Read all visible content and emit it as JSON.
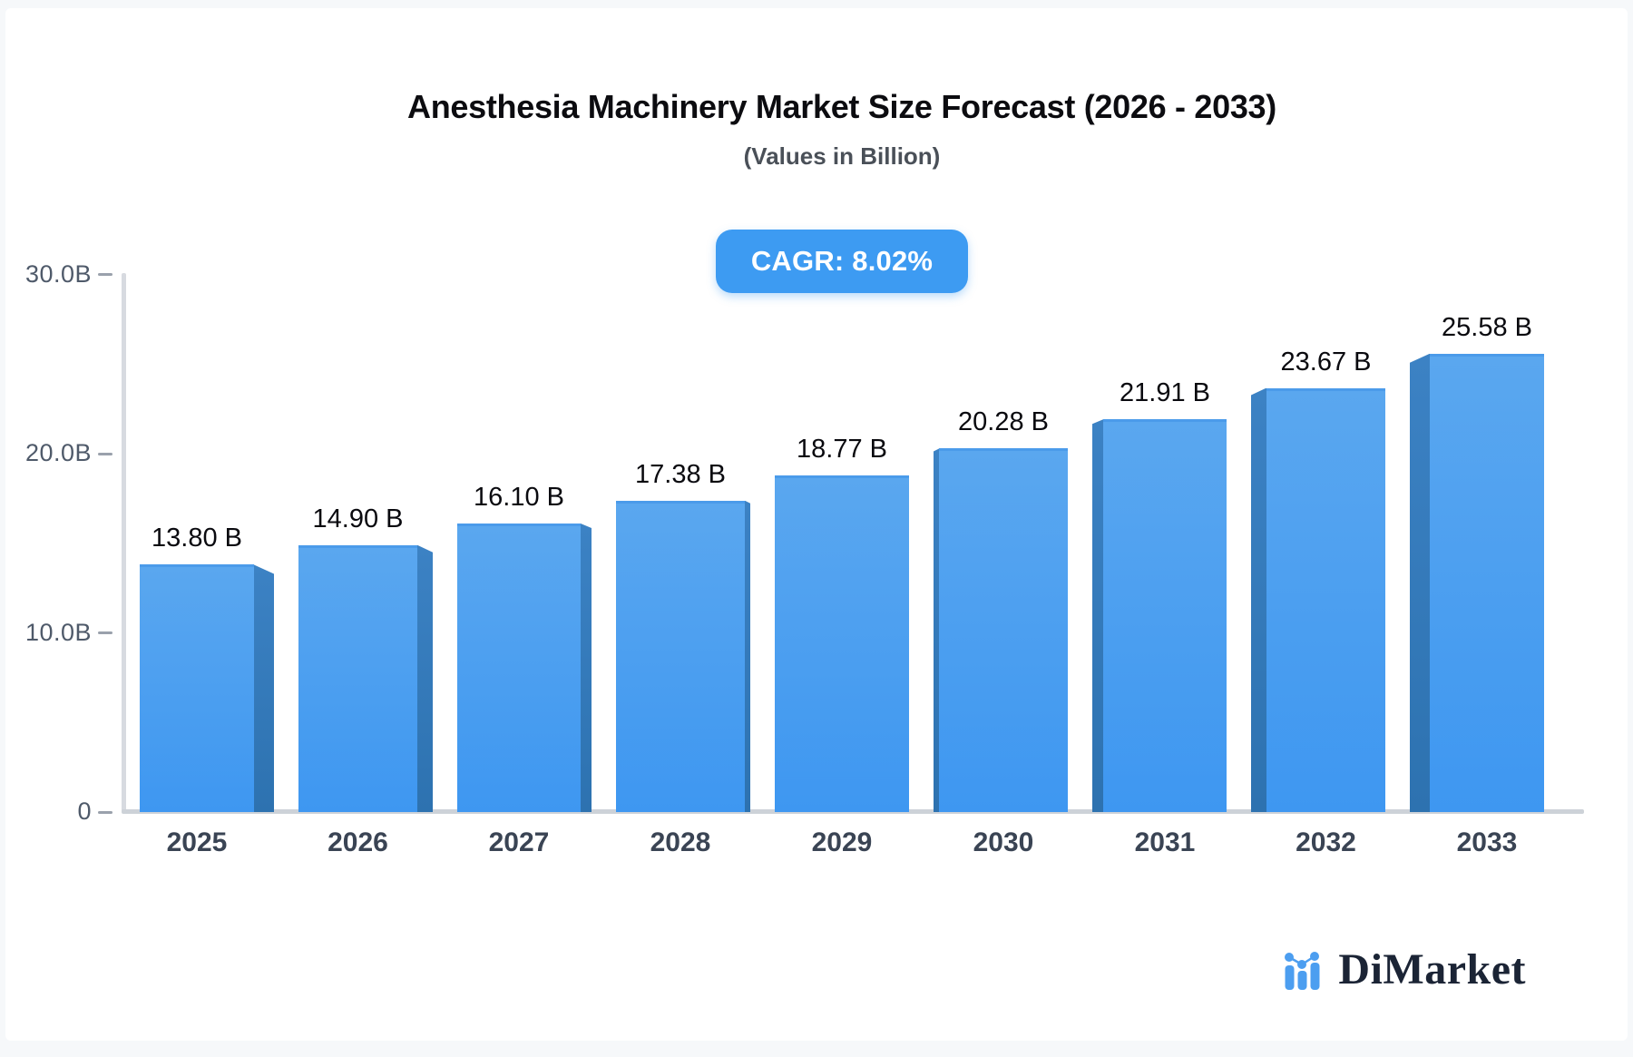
{
  "header": {
    "title": "Anesthesia Machinery Market Size Forecast (2026 - 2033)",
    "subtitle": "(Values in Billion)",
    "cagr_badge": "CAGR: 8.02%"
  },
  "chart_data": {
    "type": "bar",
    "title": "Anesthesia Machinery Market Size Forecast (2026 - 2033)",
    "subtitle": "(Values in Billion)",
    "cagr": "8.02%",
    "categories": [
      "2025",
      "2026",
      "2027",
      "2028",
      "2029",
      "2030",
      "2031",
      "2032",
      "2033"
    ],
    "values": [
      13.8,
      14.9,
      16.1,
      17.38,
      18.77,
      20.28,
      21.91,
      23.67,
      25.58
    ],
    "value_labels": [
      "13.80 B",
      "14.90 B",
      "16.10 B",
      "17.38 B",
      "18.77 B",
      "20.28 B",
      "21.91 B",
      "23.67 B",
      "25.58 B"
    ],
    "xlabel": "",
    "ylabel": "",
    "ylim": [
      0,
      30
    ],
    "y_ticks": [
      {
        "value": 30,
        "label": "30.0B"
      },
      {
        "value": 20,
        "label": "20.0B"
      },
      {
        "value": 10,
        "label": "10.0B"
      },
      {
        "value": 0,
        "label": "0"
      }
    ],
    "grid": false,
    "legend": false,
    "bar_style": "3d-perspective-center"
  },
  "footer": {
    "brand": "DiMarket"
  },
  "colors": {
    "accent_blue": "#3D9BF2",
    "bar_face_top": "#5AA7EF",
    "bar_face_bottom": "#3E97F1",
    "bar_side_dark": "#2D72B0",
    "axis_line": "#D7DAE0",
    "baseline": "#CDD2D8",
    "tick_text": "#4F5A6A",
    "year_text": "#3A4454",
    "value_text": "#0A0A0F",
    "title_text": "#0C0C10",
    "subtitle_text": "#4A5058",
    "logo_text": "#1B2435",
    "logo_icon": "#4C9EF0",
    "frame_bg": "#F6F8FA"
  }
}
